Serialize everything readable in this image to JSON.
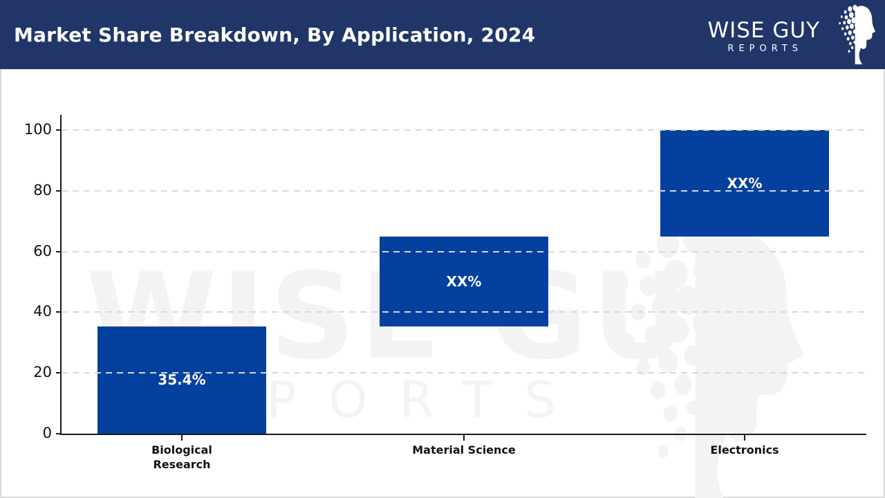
{
  "header": {
    "title": "Market Share Breakdown, By Application, 2024",
    "bg_color": "#203669",
    "logo": {
      "line1": "WISE GUY",
      "line2": "REPORTS",
      "head_icon": "dotted-head-profile"
    }
  },
  "watermark": {
    "line1": "WISE GUY",
    "line2": "REPORTS"
  },
  "chart_data": {
    "type": "bar",
    "subtype": "waterfall-floating-bars",
    "title": "Market Share Breakdown, By Application, 2024",
    "xlabel": "",
    "ylabel": "",
    "categories": [
      "Biological\nResearch",
      "Material Science",
      "Electronics"
    ],
    "segments": [
      {
        "category": "Biological Research",
        "start": 0,
        "end": 35.4,
        "label": "35.4%"
      },
      {
        "category": "Material Science",
        "start": 35.4,
        "end": 65,
        "label": "XX%"
      },
      {
        "category": "Electronics",
        "start": 65,
        "end": 100,
        "label": "XX%"
      }
    ],
    "yticks": [
      0,
      20,
      40,
      60,
      80,
      100
    ],
    "ylim": [
      0,
      105
    ],
    "grid": "horizontal-dashed",
    "legend": "none",
    "bar_color": "#04419e",
    "bar_label_color": "#ffffff",
    "axis_color": "#1a1a1a",
    "grid_color": "#d8d8d8"
  }
}
